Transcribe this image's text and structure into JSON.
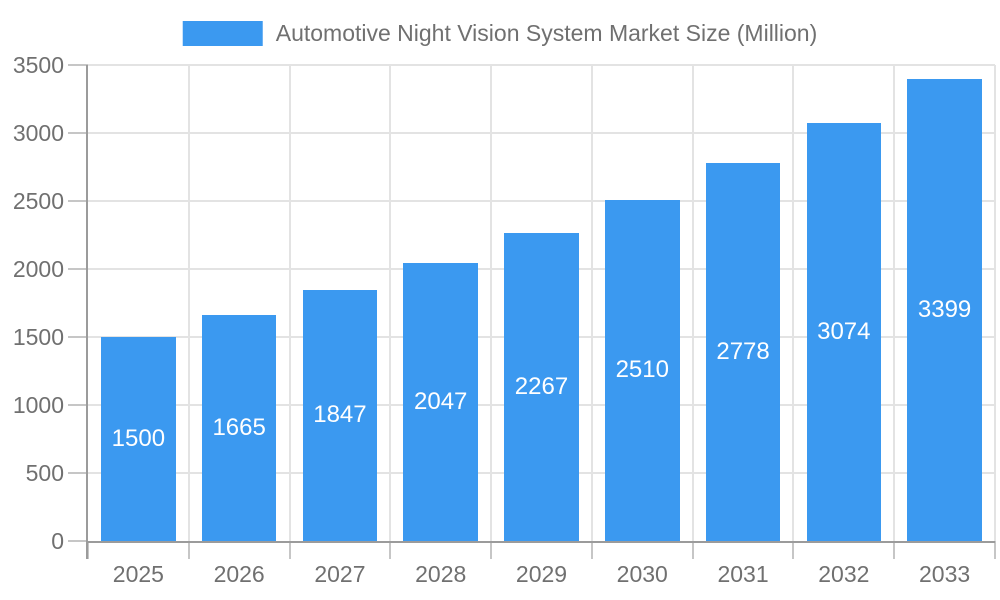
{
  "chart_data": {
    "type": "bar",
    "title": "Automotive Night Vision System Market Size (Million)",
    "categories": [
      "2025",
      "2026",
      "2027",
      "2028",
      "2029",
      "2030",
      "2031",
      "2032",
      "2033"
    ],
    "values": [
      1500,
      1665,
      1847,
      2047,
      2267,
      2510,
      2778,
      3074,
      3399
    ],
    "xlabel": "",
    "ylabel": "",
    "ylim": [
      0,
      3500
    ],
    "ytick_step": 500,
    "yticks": [
      0,
      500,
      1000,
      1500,
      2000,
      2500,
      3000,
      3500
    ],
    "grid": true,
    "legend_position": "top",
    "bar_labels_inside": true,
    "colors": {
      "bar": "#3B99F0",
      "bar_label": "#FFFFFF",
      "axis_text": "#707070",
      "grid": "#E3E3E3",
      "tick": "#C6C6C6",
      "axis_line": "#9B9B9B",
      "background": "#FFFFFF"
    }
  }
}
